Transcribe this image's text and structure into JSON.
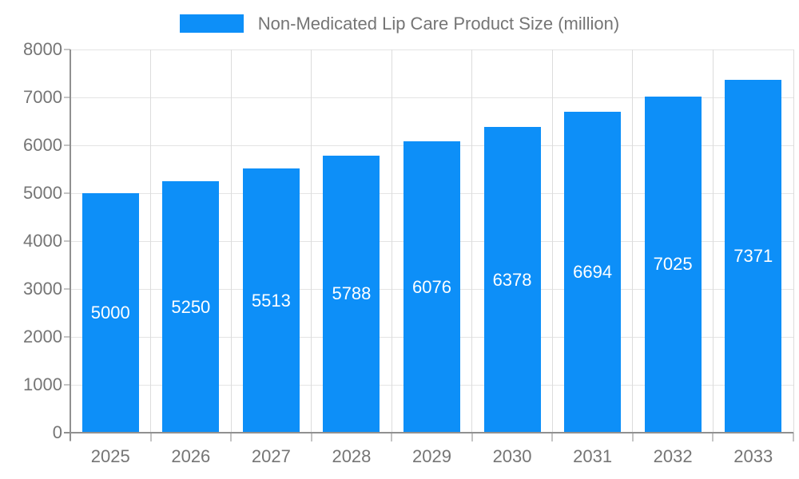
{
  "legend": {
    "items": [
      {
        "label": "Non-Medicated Lip Care Product Size (million)",
        "color": "#0d8ff8"
      }
    ],
    "position": "top"
  },
  "chart_data": {
    "type": "bar",
    "title": "",
    "categories": [
      "2025",
      "2026",
      "2027",
      "2028",
      "2029",
      "2030",
      "2031",
      "2032",
      "2033"
    ],
    "series": [
      {
        "name": "Non-Medicated Lip Care Product Size (million)",
        "values": [
          5000,
          5250,
          5513,
          5788,
          6076,
          6378,
          6694,
          7025,
          7371
        ],
        "color": "#0d8ff8"
      }
    ],
    "xlabel": "",
    "ylabel": "",
    "ylim": [
      0,
      8000
    ],
    "y_tick_step": 1000,
    "y_tick_labels": [
      "0",
      "1000",
      "2000",
      "3000",
      "4000",
      "5000",
      "6000",
      "7000",
      "8000"
    ],
    "grid": "both",
    "legend_position": "top",
    "bar_labels_inside": true
  },
  "colors": {
    "background": "#ffffff",
    "bar": "#0d8ff8",
    "axis_line": "#909090",
    "tick": "#c4c4c4",
    "gridline_h": "#e4e4e4",
    "gridline_v": "#dcdcdc",
    "axis_text": "#757575",
    "bar_label": "#ffffff"
  }
}
